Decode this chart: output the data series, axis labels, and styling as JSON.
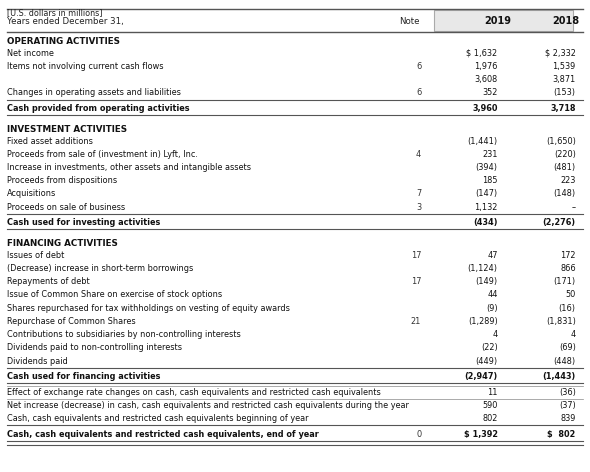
{
  "header_note": "[U.S. dollars in millions]",
  "header_years": "Years ended December 31,",
  "col_note": "Note",
  "col_2019": "2019",
  "col_2018": "2018",
  "bg_color": "#ffffff",
  "header_bg": "#e8e8e8",
  "rows": [
    {
      "label": "OPERATING ACTIVITIES",
      "note": "",
      "v2019": "",
      "v2018": "",
      "style": "section_header"
    },
    {
      "label": "Net income",
      "note": "",
      "v2019": "$ 1,632",
      "v2018": "$ 2,332",
      "style": "normal"
    },
    {
      "label": "Items not involving current cash flows",
      "note": "6",
      "v2019": "1,976",
      "v2018": "1,539",
      "style": "normal"
    },
    {
      "label": "",
      "note": "",
      "v2019": "3,608",
      "v2018": "3,871",
      "style": "subtotal"
    },
    {
      "label": "Changes in operating assets and liabilities",
      "note": "6",
      "v2019": "352",
      "v2018": "(153)",
      "style": "normal"
    },
    {
      "label": "Cash provided from operating activities",
      "note": "",
      "v2019": "3,960",
      "v2018": "3,718",
      "style": "bold_line"
    },
    {
      "label": "",
      "note": "",
      "v2019": "",
      "v2018": "",
      "style": "spacer"
    },
    {
      "label": "INVESTMENT ACTIVITIES",
      "note": "",
      "v2019": "",
      "v2018": "",
      "style": "section_header"
    },
    {
      "label": "Fixed asset additions",
      "note": "",
      "v2019": "(1,441)",
      "v2018": "(1,650)",
      "style": "normal"
    },
    {
      "label": "Proceeds from sale of (investment in) Lyft, Inc.",
      "note": "4",
      "v2019": "231",
      "v2018": "(220)",
      "style": "normal"
    },
    {
      "label": "Increase in investments, other assets and intangible assets",
      "note": "",
      "v2019": "(394)",
      "v2018": "(481)",
      "style": "normal"
    },
    {
      "label": "Proceeds from dispositions",
      "note": "",
      "v2019": "185",
      "v2018": "223",
      "style": "normal"
    },
    {
      "label": "Acquisitions",
      "note": "7",
      "v2019": "(147)",
      "v2018": "(148)",
      "style": "normal"
    },
    {
      "label": "Proceeds on sale of business",
      "note": "3",
      "v2019": "1,132",
      "v2018": "–",
      "style": "normal"
    },
    {
      "label": "Cash used for investing activities",
      "note": "",
      "v2019": "(434)",
      "v2018": "(2,276)",
      "style": "bold_line"
    },
    {
      "label": "",
      "note": "",
      "v2019": "",
      "v2018": "",
      "style": "spacer"
    },
    {
      "label": "FINANCING ACTIVITIES",
      "note": "",
      "v2019": "",
      "v2018": "",
      "style": "section_header"
    },
    {
      "label": "Issues of debt",
      "note": "17",
      "v2019": "47",
      "v2018": "172",
      "style": "normal"
    },
    {
      "label": "(Decrease) increase in short-term borrowings",
      "note": "",
      "v2019": "(1,124)",
      "v2018": "866",
      "style": "normal"
    },
    {
      "label": "Repayments of debt",
      "note": "17",
      "v2019": "(149)",
      "v2018": "(171)",
      "style": "normal"
    },
    {
      "label": "Issue of Common Share on exercise of stock options",
      "note": "",
      "v2019": "44",
      "v2018": "50",
      "style": "normal"
    },
    {
      "label": "Shares repurchased for tax withholdings on vesting of equity awards",
      "note": "",
      "v2019": "(9)",
      "v2018": "(16)",
      "style": "normal"
    },
    {
      "label": "Repurchase of Common Shares",
      "note": "21",
      "v2019": "(1,289)",
      "v2018": "(1,831)",
      "style": "normal"
    },
    {
      "label": "Contributions to subsidiaries by non-controlling interests",
      "note": "",
      "v2019": "4",
      "v2018": "4",
      "style": "normal"
    },
    {
      "label": "Dividends paid to non-controlling interests",
      "note": "",
      "v2019": "(22)",
      "v2018": "(69)",
      "style": "normal"
    },
    {
      "label": "Dividends paid",
      "note": "",
      "v2019": "(449)",
      "v2018": "(448)",
      "style": "normal"
    },
    {
      "label": "Cash used for financing activities",
      "note": "",
      "v2019": "(2,947)",
      "v2018": "(1,443)",
      "style": "bold_line"
    },
    {
      "label": "Effect of exchange rate changes on cash, cash equivalents and restricted cash equivalents",
      "note": "",
      "v2019": "11",
      "v2018": "(36)",
      "style": "normal_line"
    },
    {
      "label": "Net increase (decrease) in cash, cash equivalents and restricted cash equivalents during the year",
      "note": "",
      "v2019": "590",
      "v2018": "(37)",
      "style": "normal"
    },
    {
      "label": "Cash, cash equivalents and restricted cash equivalents beginning of year",
      "note": "",
      "v2019": "802",
      "v2018": "839",
      "style": "normal"
    },
    {
      "label": "Cash, cash equivalents and restricted cash equivalents, end of year",
      "note": "0",
      "v2019": "$ 1,392",
      "v2018": "$  802",
      "style": "bold_line_final"
    }
  ]
}
